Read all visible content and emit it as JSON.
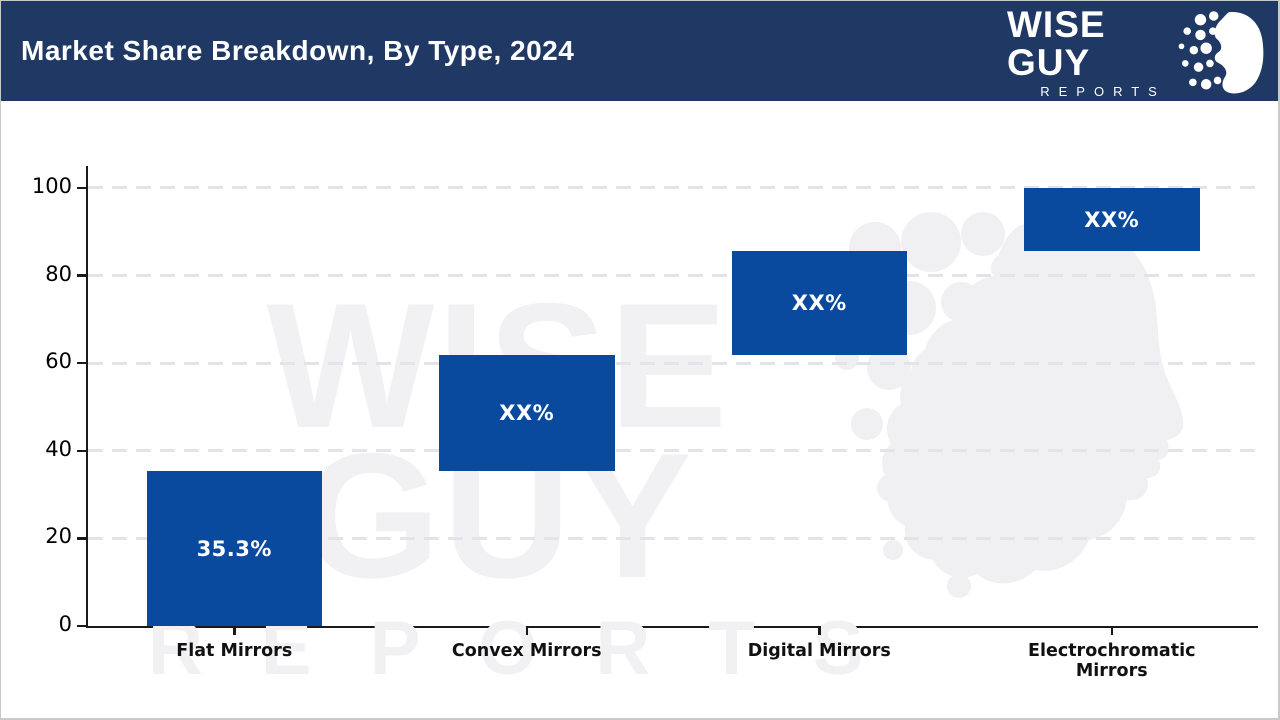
{
  "header": {
    "title": "Market Share Breakdown, By Type, 2024",
    "bg_color": "#1f3864",
    "text_color": "#ffffff",
    "logo": {
      "line1": "WISE GUY",
      "line2": "REPORTS"
    }
  },
  "watermark": {
    "line1": "WISE GUY",
    "line2": "REPORTS"
  },
  "chart_data": {
    "type": "bar",
    "subtype": "floating-waterfall",
    "title": "Market Share Breakdown, By Type, 2024",
    "xlabel": "",
    "ylabel": "",
    "categories": [
      "Flat Mirrors",
      "Convex Mirrors",
      "Digital Mirrors",
      "Electrochromatic Mirrors"
    ],
    "segments": [
      {
        "category": "Flat Mirrors",
        "start": 0,
        "end": 35.3,
        "label": "35.3%"
      },
      {
        "category": "Convex Mirrors",
        "start": 35.3,
        "end": 61.8,
        "label": "XX%"
      },
      {
        "category": "Digital Mirrors",
        "start": 61.8,
        "end": 85.5,
        "label": "XX%"
      },
      {
        "category": "Electrochromatic Mirrors",
        "start": 85.5,
        "end": 100,
        "label": "XX%"
      }
    ],
    "yticks": [
      0,
      20,
      40,
      60,
      80,
      100
    ],
    "ylim": [
      0,
      105
    ],
    "grid": "horizontal-dashed",
    "legend": "none",
    "bar_color": "#0a4a9e",
    "bar_label_color": "#ffffff",
    "axis_color": "#1a1a1a",
    "grid_color": "#e4e4e8"
  }
}
